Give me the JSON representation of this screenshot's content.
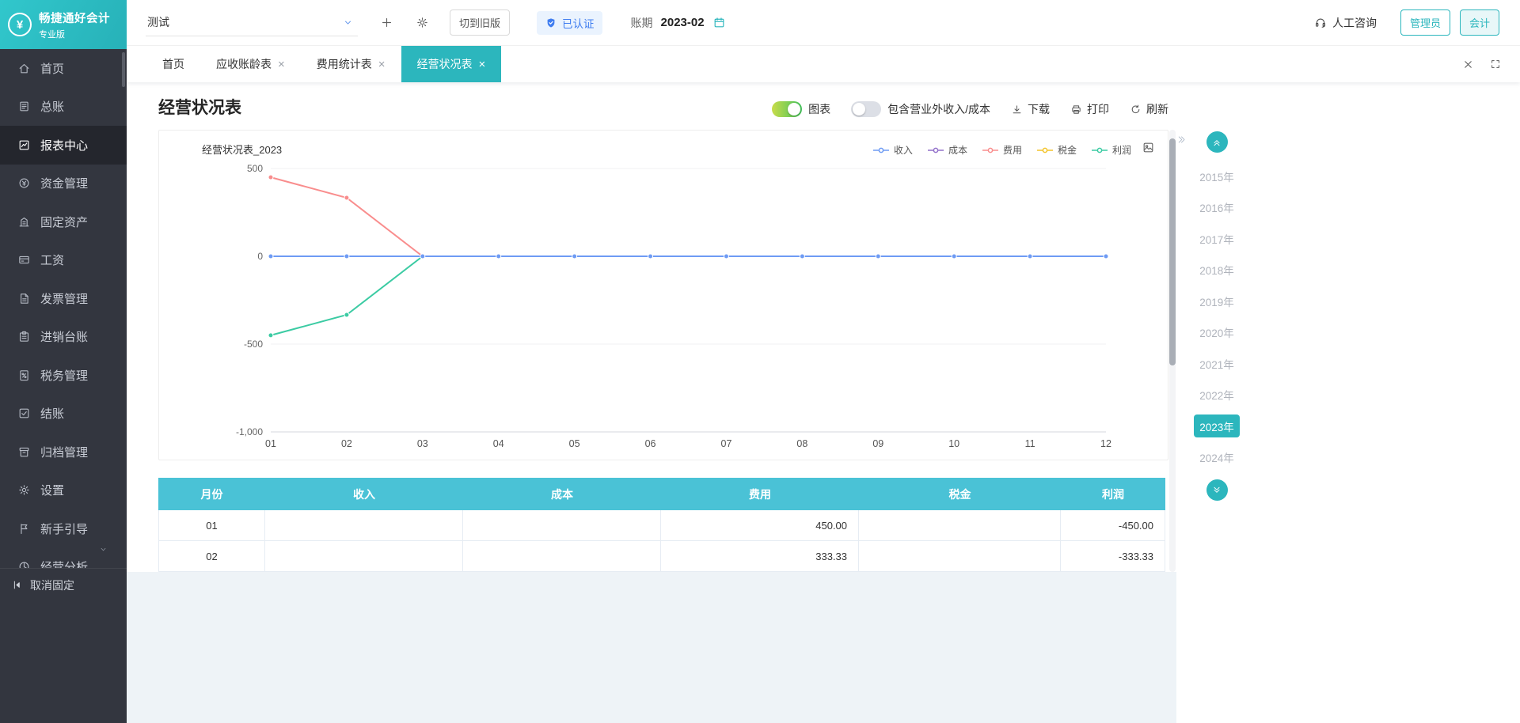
{
  "colors": {
    "primary": "#2cb6bd",
    "header_teal": "#4ac2d6",
    "sidebar_bg": "#33363f",
    "sidebar_active_bg": "#24262d",
    "certified_blue": "#3f7df0",
    "link_blue": "#4a86e8",
    "toggle_on_from": "#c8dc4a",
    "toggle_on_to": "#43c35c",
    "toggle_off": "#dcdfe6"
  },
  "app": {
    "logo_icon": "coin-icon",
    "name": "畅捷通好会计",
    "edition": "专业版"
  },
  "sidebar": {
    "items": [
      {
        "id": "home",
        "label": "首页",
        "icon": "home-icon"
      },
      {
        "id": "general-ledger",
        "label": "总账",
        "icon": "ledger-icon"
      },
      {
        "id": "report-center",
        "label": "报表中心",
        "icon": "report-icon",
        "active": true
      },
      {
        "id": "fund-management",
        "label": "资金管理",
        "icon": "fund-icon"
      },
      {
        "id": "fixed-assets",
        "label": "固定资产",
        "icon": "asset-icon"
      },
      {
        "id": "payroll",
        "label": "工资",
        "icon": "payroll-icon"
      },
      {
        "id": "invoice-management",
        "label": "发票管理",
        "icon": "invoice-icon"
      },
      {
        "id": "purchase-sale-ledger",
        "label": "进销台账",
        "icon": "inventory-icon"
      },
      {
        "id": "tax-management",
        "label": "税务管理",
        "icon": "tax-icon"
      },
      {
        "id": "closing",
        "label": "结账",
        "icon": "closing-icon"
      },
      {
        "id": "archive-management",
        "label": "归档管理",
        "icon": "archive-icon"
      },
      {
        "id": "settings",
        "label": "设置",
        "icon": "gear-icon"
      },
      {
        "id": "beginner-guide",
        "label": "新手引导",
        "icon": "guide-icon"
      },
      {
        "id": "partial-item",
        "label": "经营分析",
        "icon": "analysis-icon"
      }
    ],
    "scroll_down_icon": "chevron-down-icon",
    "unpin": {
      "label": "取消固定",
      "icon": "collapse-left-icon"
    }
  },
  "topbar": {
    "account": {
      "value": "测试",
      "chevron_icon": "chevron-down-icon"
    },
    "add_icon": "plus-icon",
    "settings_icon": "gear-icon",
    "switch_old_label": "切到旧版",
    "certified": {
      "label": "已认证",
      "icon": "shield-check-icon"
    },
    "period": {
      "label": "账期",
      "value": "2023-02",
      "icon": "calendar-icon"
    },
    "consult": {
      "label": "人工咨询",
      "icon": "headset-icon"
    },
    "admin_label": "管理员",
    "accountant_label": "会计"
  },
  "tabbar": {
    "tabs": [
      {
        "id": "home",
        "label": "首页",
        "closable": false
      },
      {
        "id": "receivable-aging",
        "label": "应收账龄表",
        "closable": true
      },
      {
        "id": "expense-stats",
        "label": "费用统计表",
        "closable": true
      },
      {
        "id": "operating-status",
        "label": "经营状况表",
        "closable": true,
        "active": true
      }
    ],
    "close_icon": "close-icon",
    "fullscreen_icon": "fullscreen-icon"
  },
  "page": {
    "title": "经营状况表",
    "toggles": [
      {
        "id": "chart",
        "label": "图表",
        "on": true
      },
      {
        "id": "include-nonoperating",
        "label": "包含营业外收入/成本",
        "on": false
      }
    ],
    "actions": [
      {
        "id": "download",
        "label": "下载",
        "icon": "download-icon"
      },
      {
        "id": "print",
        "label": "打印",
        "icon": "print-icon"
      },
      {
        "id": "refresh",
        "label": "刷新",
        "icon": "refresh-icon"
      }
    ],
    "panel_handle_icon": "double-chevron-right-icon"
  },
  "chart_data": {
    "type": "line",
    "title": "经营状况表_2023",
    "x": [
      "01",
      "02",
      "03",
      "04",
      "05",
      "06",
      "07",
      "08",
      "09",
      "10",
      "11",
      "12"
    ],
    "series": [
      {
        "name": "收入",
        "color": "#6e9bf4",
        "values": [
          0,
          0,
          0,
          0,
          0,
          0,
          0,
          0,
          0,
          0,
          0,
          0
        ]
      },
      {
        "name": "成本",
        "color": "#9270ca",
        "values": [
          0,
          0,
          0,
          0,
          0,
          0,
          0,
          0,
          0,
          0,
          0,
          0
        ]
      },
      {
        "name": "费用",
        "color": "#f98d8d",
        "values": [
          450,
          333.33,
          0,
          0,
          0,
          0,
          0,
          0,
          0,
          0,
          0,
          0
        ]
      },
      {
        "name": "税金",
        "color": "#f3c42b",
        "values": [
          0,
          0,
          0,
          0,
          0,
          0,
          0,
          0,
          0,
          0,
          0,
          0
        ]
      },
      {
        "name": "利润",
        "color": "#3bcba3",
        "values": [
          -450,
          -333.33,
          0,
          0,
          0,
          0,
          0,
          0,
          0,
          0,
          0,
          0
        ]
      }
    ],
    "ylim": [
      -1000,
      500
    ],
    "yticks": [
      {
        "value": 500,
        "label": "500"
      },
      {
        "value": 0,
        "label": "0"
      },
      {
        "value": -500,
        "label": "-500"
      },
      {
        "value": -1000,
        "label": "-1,000"
      }
    ],
    "legend_position": "top-right",
    "grid": true,
    "toolbox_icon": "save-image-icon"
  },
  "table": {
    "columns": [
      "月份",
      "收入",
      "成本",
      "费用",
      "税金",
      "利润"
    ],
    "rows": [
      [
        "01",
        "",
        "",
        "450.00",
        "",
        "-450.00"
      ],
      [
        "02",
        "",
        "",
        "333.33",
        "",
        "-333.33"
      ]
    ]
  },
  "year_panel": {
    "up_icon": "double-chevron-up-icon",
    "down_icon": "double-chevron-down-icon",
    "years": [
      "2015年",
      "2016年",
      "2017年",
      "2018年",
      "2019年",
      "2020年",
      "2021年",
      "2022年",
      "2023年",
      "2024年"
    ],
    "selected": "2023年"
  }
}
